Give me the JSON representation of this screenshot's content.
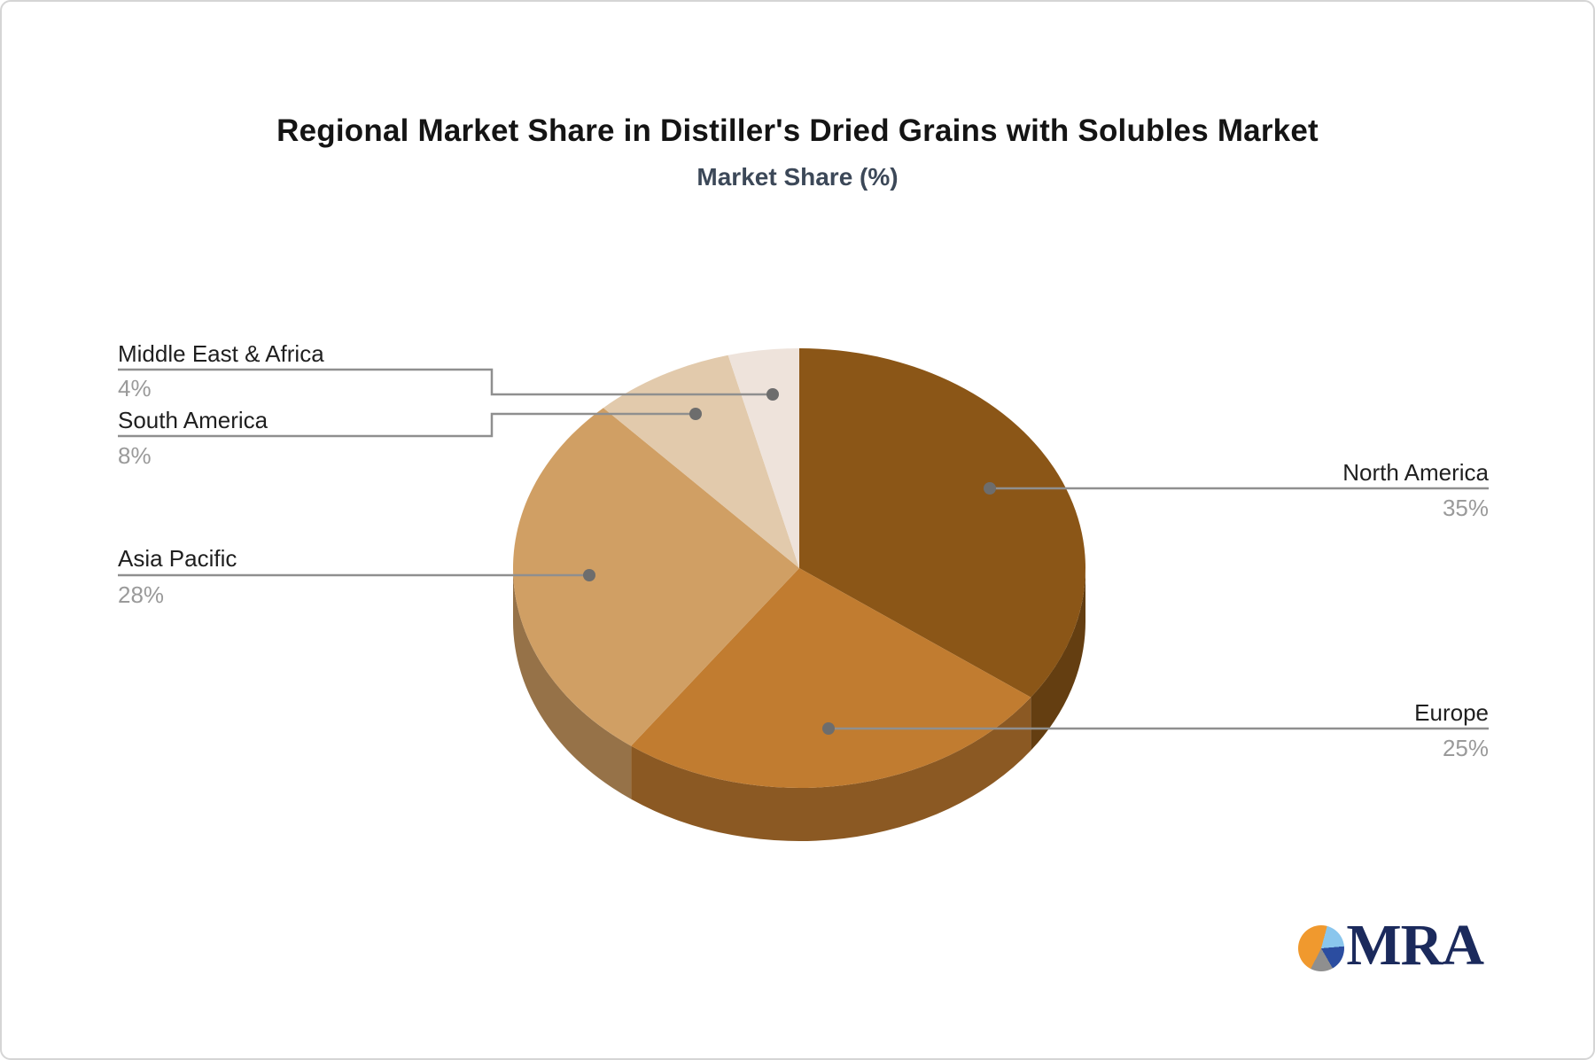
{
  "page": {
    "background": "#ffffff",
    "border_color": "#d5d5d5"
  },
  "chart_data": {
    "type": "pie",
    "title": "Regional Market Share in Distiller's Dried Grains with Solubles Market",
    "subtitle": "Market Share (%)",
    "unit": "%",
    "direction": "clockwise",
    "start_angle_deg": 0,
    "effect_3d": true,
    "legend": "callout-labels",
    "slices": [
      {
        "label": "North America",
        "value": 35,
        "pct_label": "35%",
        "color": "#8B5617"
      },
      {
        "label": "Europe",
        "value": 25,
        "pct_label": "25%",
        "color": "#C17C30"
      },
      {
        "label": "Asia Pacific",
        "value": 28,
        "pct_label": "28%",
        "color": "#D09F64"
      },
      {
        "label": "South America",
        "value": 8,
        "pct_label": "8%",
        "color": "#E2CAAC"
      },
      {
        "label": "Middle East & Africa",
        "value": 4,
        "pct_label": "4%",
        "color": "#EEE3DB"
      }
    ]
  },
  "styles": {
    "title_color": "#141414",
    "subtitle_color": "#3c4858",
    "label_color": "#1f1f1f",
    "pct_color": "#9a9a9a",
    "connector_color": "#8f8f8f",
    "dot_color": "#6d6d6d"
  },
  "logo": {
    "text": "MRA",
    "text_color": "#1b2a5c",
    "pie_wedges": [
      {
        "name": "orange-top",
        "color": "#F0992E",
        "from_deg": 0,
        "to_deg": 15
      },
      {
        "name": "light-blue",
        "color": "#8AC6ED",
        "from_deg": 15,
        "to_deg": 85
      },
      {
        "name": "navy-blue",
        "color": "#2B4DA0",
        "from_deg": 85,
        "to_deg": 150
      },
      {
        "name": "gray",
        "color": "#8f8f8f",
        "from_deg": 150,
        "to_deg": 207
      },
      {
        "name": "orange-main",
        "color": "#F0992E",
        "from_deg": 207,
        "to_deg": 360
      }
    ]
  }
}
